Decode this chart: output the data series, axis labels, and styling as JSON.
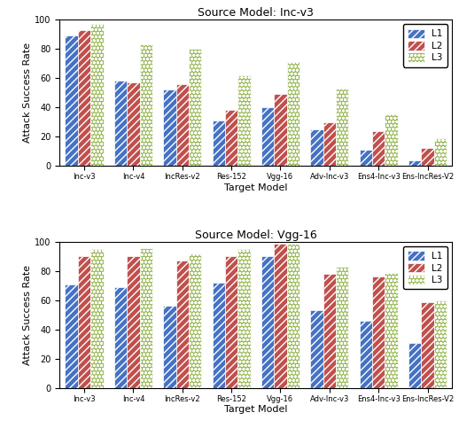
{
  "subplot1_title": "Source Model: Inc-v3",
  "subplot2_title": "Source Model: Vgg-16",
  "xlabel": "Target Model",
  "ylabel": "Attack Success Rate",
  "categories": [
    "Inc-v3",
    "Inc-v4",
    "IncRes-v2",
    "Res-152",
    "Vgg-16",
    "Adv-Inc-v3",
    "Ens4-Inc-v3",
    "Ens-IncRes-V2"
  ],
  "legend_labels": [
    "L1",
    "L2",
    "L3"
  ],
  "colors_l1": "#4472C4",
  "colors_l2": "#C0504D",
  "colors_l3": "#9BBB59",
  "ylim": [
    0,
    100
  ],
  "yticks": [
    0,
    20,
    40,
    60,
    80,
    100
  ],
  "subplot1": {
    "L1": [
      89,
      58,
      52,
      31,
      40,
      25,
      11,
      4
    ],
    "L2": [
      93,
      57,
      56,
      38,
      49,
      30,
      24,
      12
    ],
    "L3": [
      97,
      83,
      80,
      62,
      71,
      53,
      35,
      19
    ]
  },
  "subplot2": {
    "L1": [
      71,
      69,
      56,
      72,
      90,
      53,
      46,
      31
    ],
    "L2": [
      90,
      90,
      87,
      90,
      99,
      78,
      76,
      59
    ],
    "L3": [
      95,
      96,
      92,
      95,
      99,
      83,
      79,
      60
    ]
  }
}
